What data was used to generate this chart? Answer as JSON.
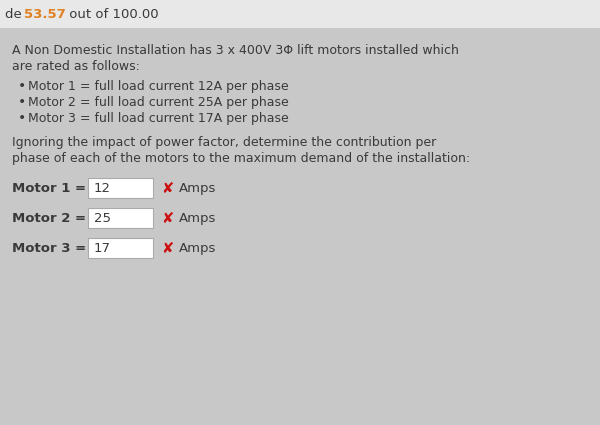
{
  "bg_top_color": "#e8e8e8",
  "bg_main_color": "#c8c8c8",
  "score_prefix": "de",
  "score_value": "53.57",
  "score_suffix": " out of 100.00",
  "score_value_color": "#e08020",
  "text_color": "#3a3a3a",
  "main_text_line1": "A Non Domestic Installation has 3 x 400V 3Φ lift motors installed which",
  "main_text_line2": "are rated as follows:",
  "bullet1": "Motor 1 = full load current 12A per phase",
  "bullet2": "Motor 2 = full load current 25A per phase",
  "bullet3": "Motor 3 = full load current 17A per phase",
  "question_line1": "Ignoring the impact of power factor, determine the contribution per",
  "question_line2": "phase of each of the motors to the maximum demand of the installation:",
  "motor1_label": "Motor 1 =",
  "motor1_value": "12",
  "motor2_label": "Motor 2 =",
  "motor2_value": "25",
  "motor3_label": "Motor 3 =",
  "motor3_value": "17",
  "amps_label": "Amps",
  "x_color": "#cc1111",
  "box_color": "#ffffff",
  "box_border_color": "#aaaaaa",
  "font_size_score": 9.5,
  "font_size_main": 9.0,
  "font_size_motor": 9.5
}
